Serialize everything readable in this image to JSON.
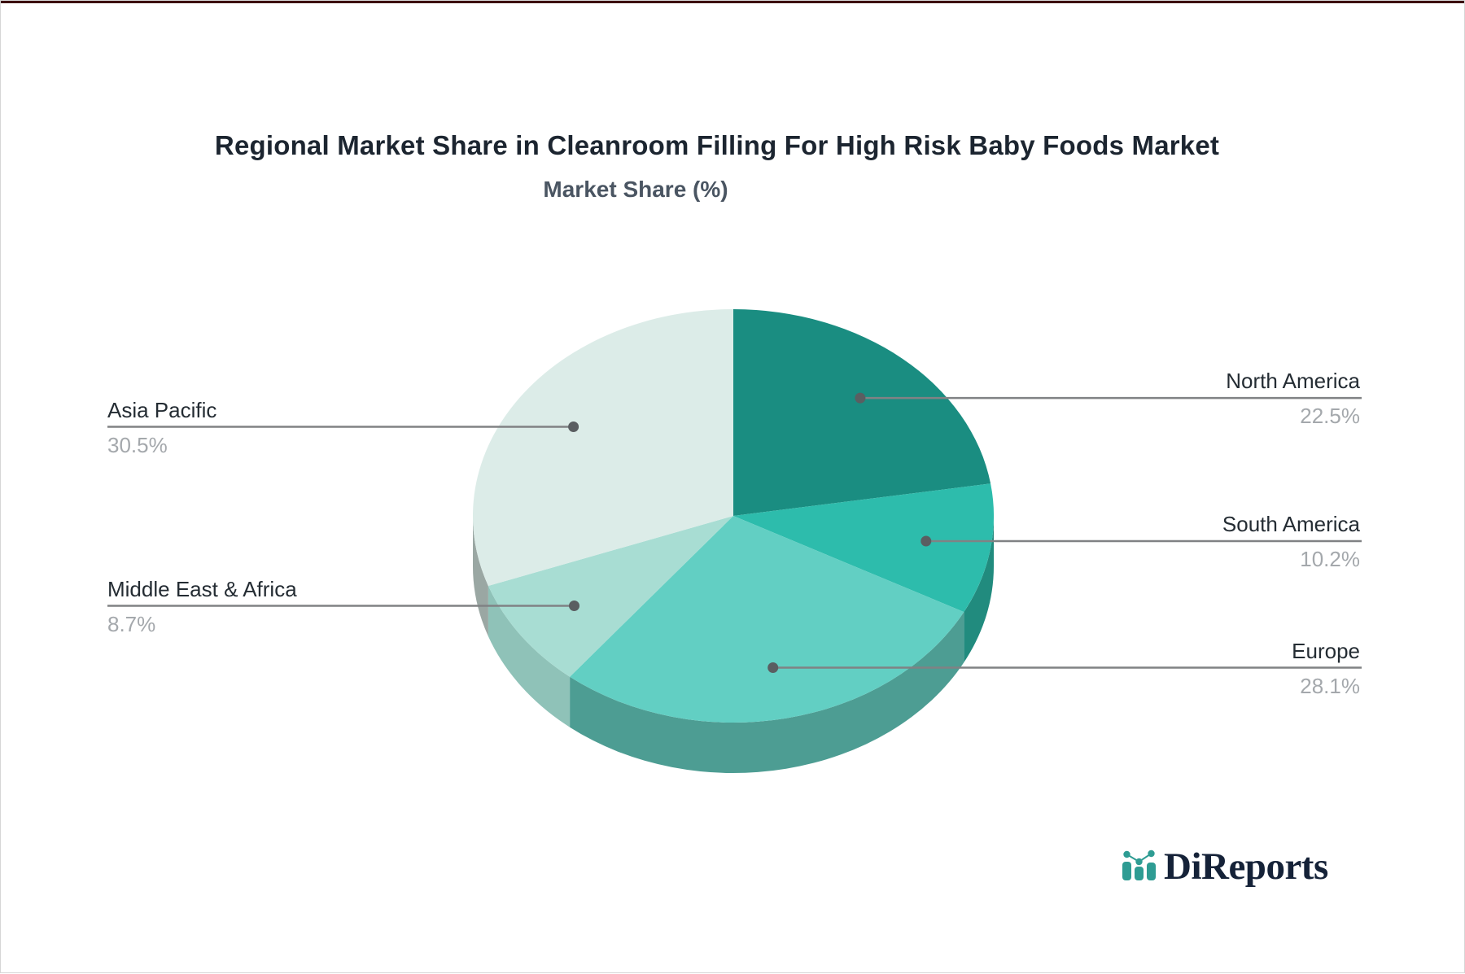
{
  "page": {
    "background": "#ffffff",
    "top_accent_color": "#3d0e0e",
    "title_color": "#1c2530",
    "subtitle_color": "#4a5562"
  },
  "logo": {
    "text": "DiReports",
    "text_color": "#152238",
    "icon": "mini-bar-line-chart-icon",
    "icon_color": "#2e9c93"
  },
  "chart_data": {
    "type": "pie",
    "style": "3d",
    "title": "Regional Market Share in Cleanroom Filling For High Risk Baby Foods Market",
    "subtitle": "Market Share (%)",
    "unit": "%",
    "start_angle_deg": 0,
    "direction": "clockwise",
    "legend_position": "callout-labels",
    "series": [
      {
        "name": "North America",
        "value": 22.5,
        "percent_label": "22.5%",
        "color": "#1a8d81",
        "side_color": "#218b7e",
        "label_side": "right"
      },
      {
        "name": "South America",
        "value": 10.2,
        "percent_label": "10.2%",
        "color": "#2dbcac",
        "side_color": "#218b7e",
        "label_side": "right"
      },
      {
        "name": "Europe",
        "value": 28.1,
        "percent_label": "28.1%",
        "color": "#62cfc3",
        "side_color": "#4d9d93",
        "label_side": "right"
      },
      {
        "name": "Middle East & Africa",
        "value": 8.7,
        "percent_label": "8.7%",
        "color": "#a8ddd3",
        "side_color": "#8fc2b8",
        "label_side": "left"
      },
      {
        "name": "Asia Pacific",
        "value": 30.5,
        "percent_label": "30.5%",
        "color": "#dcece8",
        "side_color": "#9aa7a3",
        "label_side": "left"
      }
    ],
    "leader_line_color": "#808284",
    "dot_color": "#5a5e61",
    "label_color": "#242c33",
    "percent_color": "#a4a8ac"
  }
}
